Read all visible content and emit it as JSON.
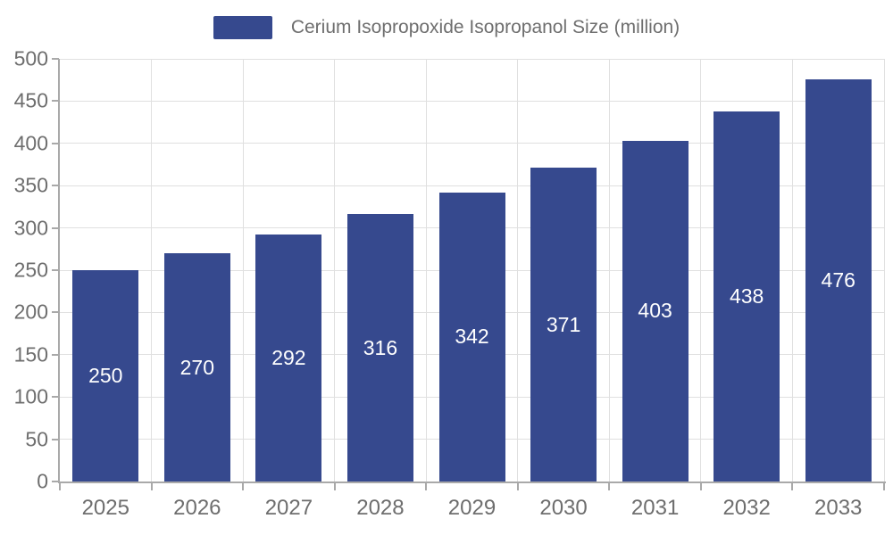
{
  "chart_data": {
    "type": "bar",
    "legend_label": "Cerium Isopropoxide Isopropanol Size (million)",
    "categories": [
      "2025",
      "2026",
      "2027",
      "2028",
      "2029",
      "2030",
      "2031",
      "2032",
      "2033"
    ],
    "values": [
      250,
      270,
      292,
      316,
      342,
      371,
      403,
      438,
      476
    ],
    "ylim": [
      0,
      500
    ],
    "ytick_step": 50,
    "ytick_labels": [
      "0",
      "50",
      "100",
      "150",
      "200",
      "250",
      "300",
      "350",
      "400",
      "450",
      "500"
    ],
    "grid": true,
    "legend_position": "top",
    "bar_value_labels_inside": true,
    "colors": {
      "bar": "#36498E",
      "bar_label": "#FFFFFF",
      "axis_line": "#A9A9A9",
      "grid_line": "#E0E0E0",
      "tick_label": "#6E6E6E",
      "legend_text": "#6E6E6E",
      "background": "#FFFFFF"
    }
  }
}
